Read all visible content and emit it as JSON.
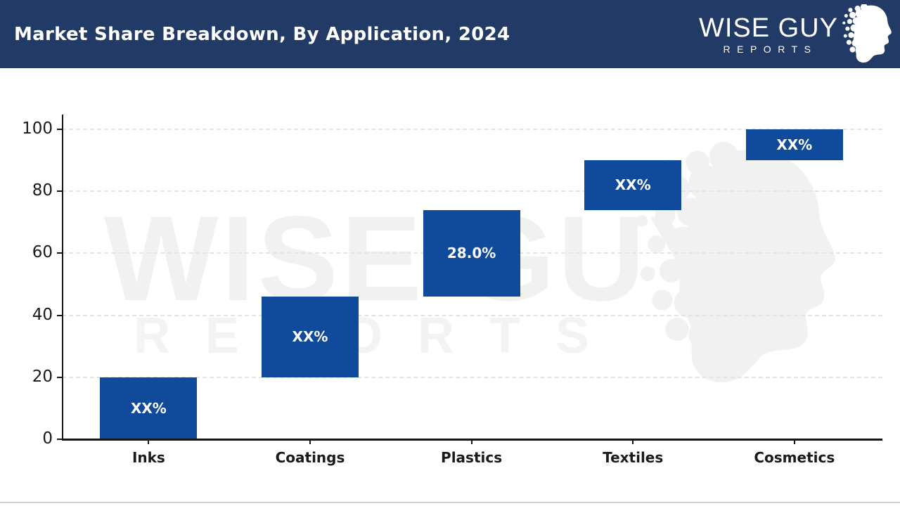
{
  "header": {
    "title": "Market Share Breakdown, By Application, 2024",
    "logo": {
      "line1": "WISE GUY",
      "line2": "REPORTS"
    }
  },
  "watermark": {
    "line1": "WISE GUY",
    "line2": "REPORTS"
  },
  "colors": {
    "header_bg": "#213a66",
    "bar_fill": "#104a9a",
    "bar_label": "#ffffff",
    "axis": "#161616",
    "gridline": "#e3e3e3",
    "tick_text": "#1a1a1a",
    "watermark": "#f1f1f1",
    "footer_line": "#cfcfcf"
  },
  "chart_data": {
    "type": "bar",
    "subtype": "waterfall",
    "title": "Market Share Breakdown, By Application, 2024",
    "xlabel": "",
    "ylabel": "",
    "categories": [
      "Inks",
      "Coatings",
      "Plastics",
      "Textiles",
      "Cosmetics"
    ],
    "bars": [
      {
        "category": "Inks",
        "start": 0,
        "value": 20,
        "label": "XX%"
      },
      {
        "category": "Coatings",
        "start": 20,
        "value": 26,
        "label": "XX%"
      },
      {
        "category": "Plastics",
        "start": 46,
        "value": 28,
        "label": "28.0%"
      },
      {
        "category": "Textiles",
        "start": 74,
        "value": 16,
        "label": "XX%"
      },
      {
        "category": "Cosmetics",
        "start": 90,
        "value": 10,
        "label": "XX%"
      }
    ],
    "yticks": [
      0,
      20,
      40,
      60,
      80,
      100
    ],
    "ylim": [
      0,
      105
    ],
    "grid": "horizontal-dashed",
    "legend": "none"
  }
}
